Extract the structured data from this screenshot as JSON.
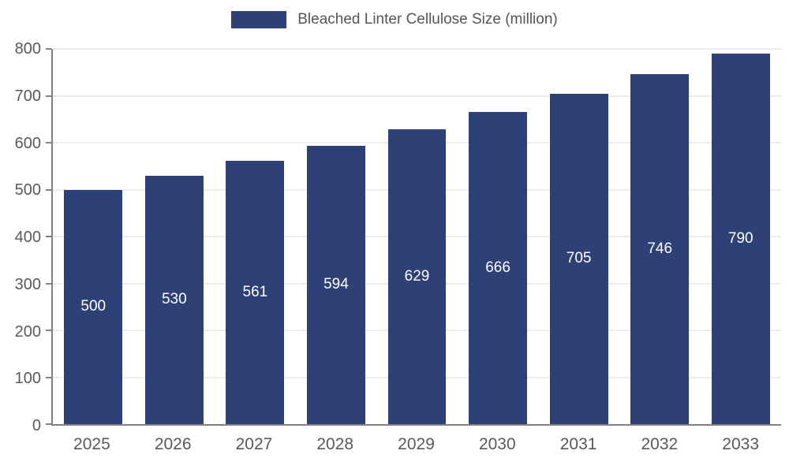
{
  "chart_data": {
    "type": "bar",
    "title": "Bleached Linter Cellulose Size (million)",
    "categories": [
      "2025",
      "2026",
      "2027",
      "2028",
      "2029",
      "2030",
      "2031",
      "2032",
      "2033"
    ],
    "values": [
      500,
      530,
      561,
      594,
      629,
      666,
      705,
      746,
      790
    ],
    "xlabel": "",
    "ylabel": "",
    "ylim": [
      0,
      800
    ],
    "yticks": [
      0,
      100,
      200,
      300,
      400,
      500,
      600,
      700,
      800
    ],
    "grid": true,
    "legend_position": "top-center",
    "bar_color": "#2e4177",
    "bar_label_color": "#ffffff",
    "axis_color": "#808080",
    "tick_label_color": "#595959",
    "gridline_color": "#d9d9d9"
  },
  "legend": {
    "label": "Bleached Linter Cellulose Size (million)"
  }
}
